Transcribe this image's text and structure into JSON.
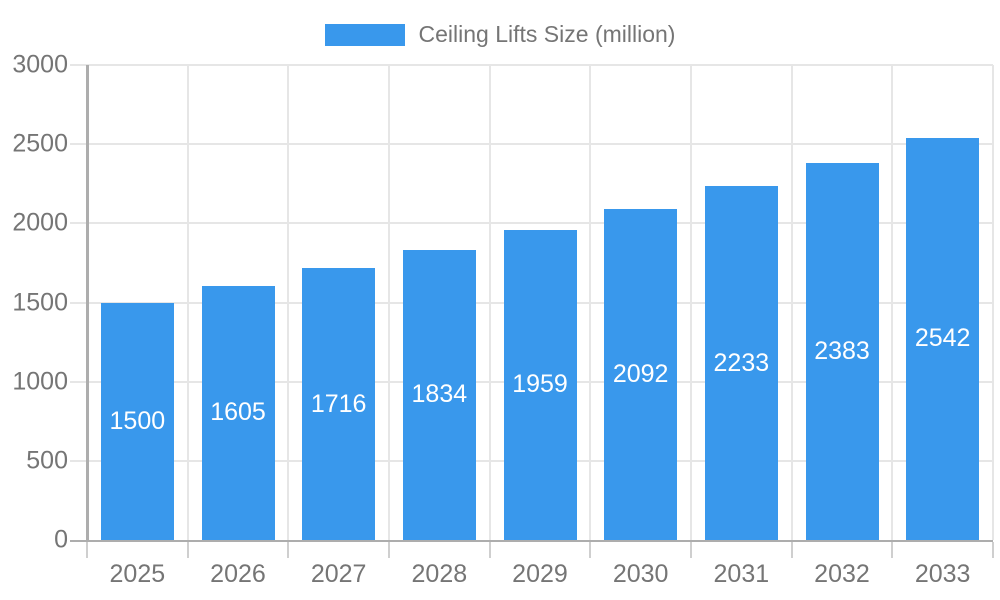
{
  "chart_data": {
    "type": "bar",
    "title": "Ceiling Lifts Size (million)",
    "legend_position": "top",
    "categories": [
      "2025",
      "2026",
      "2027",
      "2028",
      "2029",
      "2030",
      "2031",
      "2032",
      "2033"
    ],
    "values": [
      1500,
      1605,
      1716,
      1834,
      1959,
      2092,
      2233,
      2383,
      2542
    ],
    "xlabel": "",
    "ylabel": "",
    "ylim": [
      0,
      3000
    ],
    "yticks": [
      0,
      500,
      1000,
      1500,
      2000,
      2500,
      3000
    ],
    "grid": true,
    "value_labels_shown": true,
    "colors": {
      "bar": "#3998EC",
      "axis_label": "#757575",
      "gridline": "#e6e6e6",
      "axis_line": "#adadad",
      "tick": "#cfcfcf",
      "value_label": "#ffffff",
      "background": "#ffffff"
    }
  }
}
